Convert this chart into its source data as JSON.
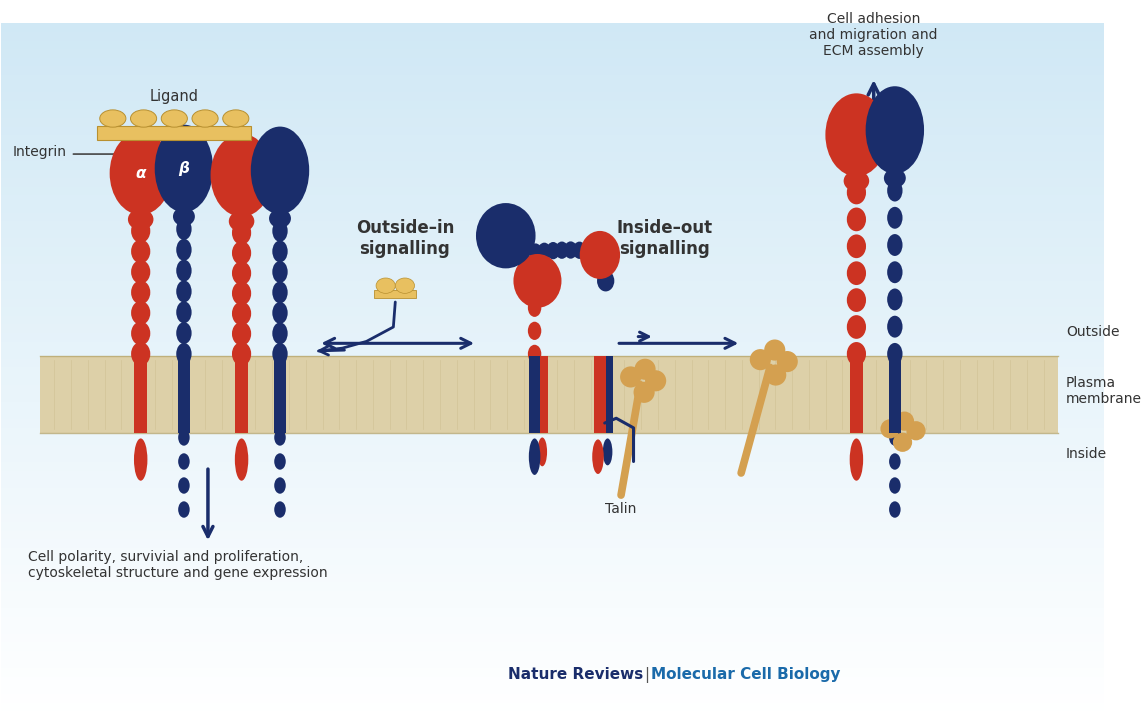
{
  "red_color": "#cc3322",
  "blue_color": "#2244aa",
  "blue_dark": "#1a2d6b",
  "ligand_color": "#e8c060",
  "talin_color": "#d4a050",
  "arrow_color": "#1a2d6b",
  "text_color_dark": "#333333",
  "text_color_blue": "#1a6aaa",
  "membrane_color": "#ddd0a8",
  "title_left": "Nature Reviews",
  "title_right": "Molecular Cell Biology",
  "label_integrin": "Integrin",
  "label_ligand": "Ligand",
  "label_alpha": "α",
  "label_beta": "β",
  "label_outside_in": "Outside–in\nsignalling",
  "label_inside_out": "Inside–out\nsignalling",
  "label_outside": "Outside",
  "label_plasma": "Plasma\nmembrane",
  "label_inside": "Inside",
  "label_talin": "Talin",
  "label_cell_adhesion": "Cell adhesion\nand migration and\nECM assembly",
  "label_cell_polarity": "Cell polarity, survivial and proliferation,\ncytoskeletal structure and gene expression"
}
